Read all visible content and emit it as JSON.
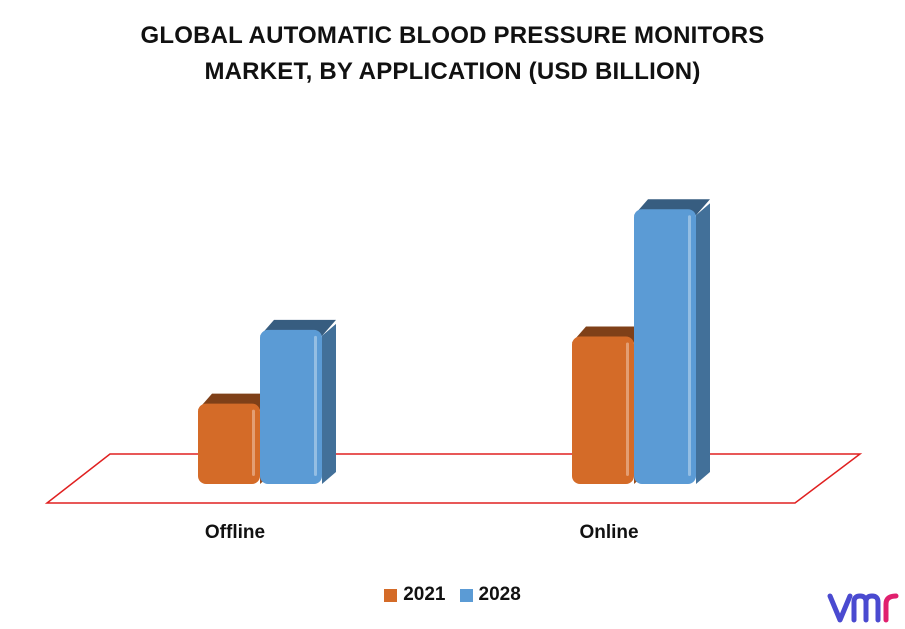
{
  "title": [
    "GLOBAL AUTOMATIC BLOOD PRESSURE MONITORS",
    "MARKET, BY APPLICATION (USD BILLION)"
  ],
  "chart_data": {
    "type": "bar",
    "title": "GLOBAL AUTOMATIC BLOOD PRESSURE MONITORS MARKET, BY APPLICATION (USD BILLION)",
    "categories": [
      "Offline",
      "Online"
    ],
    "series": [
      {
        "name": "2021",
        "values": [
          1.2,
          2.2
        ],
        "color": "#d46b28"
      },
      {
        "name": "2028",
        "values": [
          2.3,
          4.1
        ],
        "color": "#5b9bd5"
      }
    ],
    "xlabel": "",
    "ylabel": "",
    "ylim": [
      0,
      4.5
    ],
    "grid": false,
    "legend_position": "bottom",
    "floor_color": "#e02020"
  },
  "logo_text": "vmr"
}
